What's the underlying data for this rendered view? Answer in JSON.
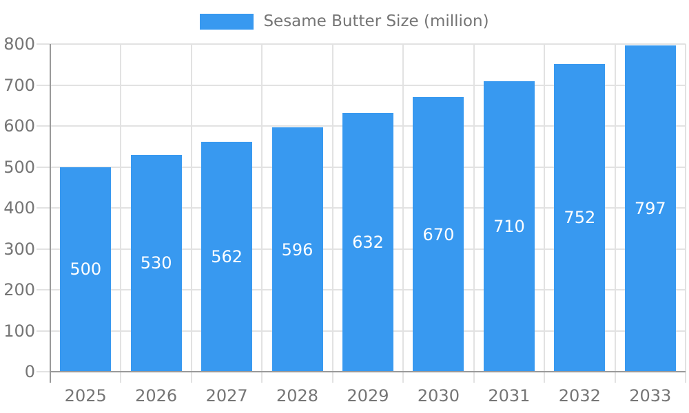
{
  "chart_data": {
    "type": "bar",
    "title": "Sesame Butter Size (million)",
    "legend": {
      "label": "Sesame Butter Size (million)",
      "position": "top-center"
    },
    "categories": [
      "2025",
      "2026",
      "2027",
      "2028",
      "2029",
      "2030",
      "2031",
      "2032",
      "2033"
    ],
    "values": [
      500,
      530,
      562,
      596,
      632,
      670,
      710,
      752,
      797
    ],
    "xlabel": "",
    "ylabel": "",
    "ylim": [
      0,
      800
    ],
    "ytick_step": 100,
    "ytick_labels": [
      "0",
      "100",
      "200",
      "300",
      "400",
      "500",
      "600",
      "700",
      "800"
    ],
    "grid": "horizontal-and-vertical",
    "bar_labels_inside": true,
    "colors": {
      "bar": "#3899f0",
      "grid": "#e2e2e2",
      "axis": "#999999",
      "axis_text": "#757575",
      "bar_label_text": "#ffffff",
      "background": "#ffffff"
    }
  }
}
